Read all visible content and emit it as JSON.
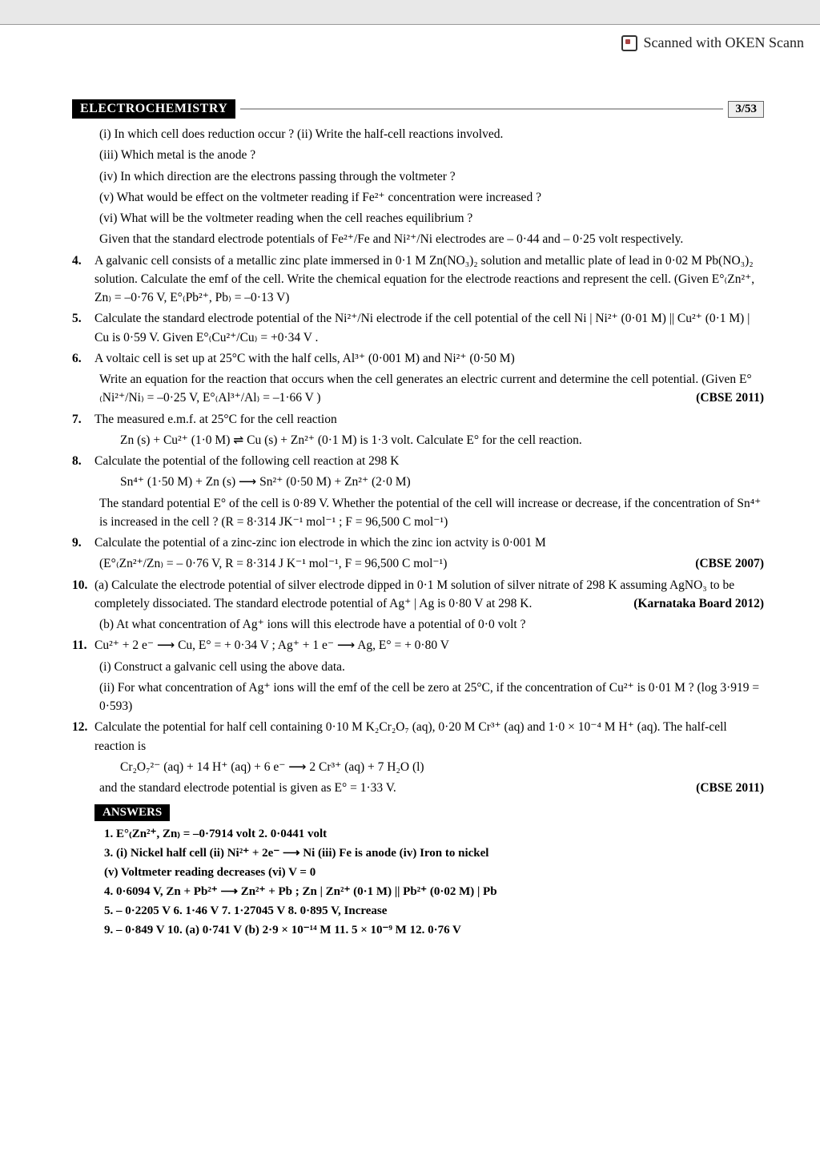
{
  "header": {
    "scan_credit": "Scanned with OKEN Scann"
  },
  "chapter": {
    "label": "ELECTROCHEMISTRY",
    "page_ref": "3/53"
  },
  "intro_subs": {
    "i": "(i) In which cell does reduction occur ?   (ii) Write the half-cell reactions involved.",
    "iii": "(iii) Which metal is the anode ?",
    "iv": "(iv) In which direction are the electrons passing through the voltmeter ?",
    "v": "(v) What would be effect on the voltmeter reading if Fe²⁺ concentration were increased ?",
    "vi": "(vi) What will be the voltmeter reading when the cell reaches equilibrium ?",
    "given": "Given that the standard electrode potentials of Fe²⁺/Fe and Ni²⁺/Ni electrodes are – 0·44 and – 0·25 volt respectively."
  },
  "q4": {
    "num": "4.",
    "text": "A galvanic cell consists of a metallic zinc plate immersed in 0·1 M Zn(NO₃)₂ solution and metallic plate of lead in 0·02 M Pb(NO₃)₂ solution. Calculate the emf of the cell. Write the chemical equation for the electrode reactions and represent the cell. (Given  E°₍Zn²⁺, Zn₎ = –0·76 V,  E°₍Pb²⁺, Pb₎ = –0·13 V)"
  },
  "q5": {
    "num": "5.",
    "text": "Calculate the standard electrode potential of the Ni²⁺/Ni electrode if the cell potential of the cell Ni | Ni²⁺ (0·01 M) || Cu²⁺ (0·1 M) | Cu is 0·59 V. Given E°₍Cu²⁺/Cu₎ = +0·34 V ."
  },
  "q6": {
    "num": "6.",
    "text": "A voltaic cell is set up at 25°C with the half cells,  Al³⁺ (0·001 M) and Ni²⁺ (0·50 M)",
    "text2": "Write an equation for the reaction that occurs when the cell generates an electric current and determine the cell potential.  (Given E°₍Ni²⁺/Ni₎ = –0·25 V,  E°₍Al³⁺/Al₎ = –1·66 V )",
    "ref": "(CBSE 2011)"
  },
  "q7": {
    "num": "7.",
    "text": "The measured e.m.f. at 25°C for the cell reaction",
    "eq": "Zn (s) + Cu²⁺ (1·0 M)  ⇌  Cu (s) + Zn²⁺ (0·1 M) is 1·3 volt. Calculate E° for the cell reaction."
  },
  "q8": {
    "num": "8.",
    "text": "Calculate the potential of the following cell reaction at 298 K",
    "eq": "Sn⁴⁺ (1·50 M) + Zn (s) ⟶ Sn²⁺ (0·50 M) + Zn²⁺ (2·0 M)",
    "text2": "The standard potential E° of the cell is 0·89 V. Whether the potential of the cell will increase or decrease, if the concentration of Sn⁴⁺ is increased in the cell ?  (R = 8·314 JK⁻¹ mol⁻¹ ; F = 96,500 C mol⁻¹)"
  },
  "q9": {
    "num": "9.",
    "text": "Calculate the potential of a zinc-zinc ion electrode in which the zinc ion actvity is 0·001 M",
    "eq": "(E°₍Zn²⁺/Zn₎ = – 0·76 V, R = 8·314 J K⁻¹ mol⁻¹, F = 96,500 C mol⁻¹)",
    "ref": "(CBSE 2007)"
  },
  "q10": {
    "num": "10.",
    "a": "(a) Calculate the electrode potential of silver electrode dipped in 0·1 M solution of silver nitrate of 298 K assuming AgNO₃ to be completely dissociated. The standard electrode potential of Ag⁺ | Ag is 0·80 V at 298 K.",
    "a_ref": "(Karnataka Board 2012)",
    "b": "(b) At what concentration of Ag⁺ ions will this electrode have a potential of 0·0 volt ?"
  },
  "q11": {
    "num": "11.",
    "text": "Cu²⁺ + 2 e⁻ ⟶ Cu, E° = + 0·34 V ;   Ag⁺ + 1 e⁻ ⟶ Ag, E° = + 0·80 V",
    "i": "(i) Construct a galvanic cell using the above data.",
    "ii": "(ii) For what concentration of Ag⁺ ions will the emf of the cell be zero at 25°C, if the concentration of Cu²⁺ is 0·01 M ? (log 3·919 = 0·593)"
  },
  "q12": {
    "num": "12.",
    "text": "Calculate the potential for half cell containing 0·10 M K₂Cr₂O₇ (aq), 0·20 M Cr³⁺ (aq) and 1·0 × 10⁻⁴ M H⁺ (aq). The half-cell reaction is",
    "eq": "Cr₂O₇²⁻ (aq) + 14 H⁺ (aq) + 6 e⁻ ⟶ 2 Cr³⁺ (aq) + 7 H₂O (l)",
    "text2": "and the standard electrode potential is given as E° = 1·33 V.",
    "ref": "(CBSE 2011)"
  },
  "answers": {
    "label": "ANSWERS",
    "r1": "1. E°₍Zn²⁺, Zn₎ = –0·7914 volt        2. 0·0441 volt",
    "r2": "3. (i) Nickel half cell (ii) Ni²⁺ + 2e⁻ ⟶ Ni (iii) Fe is anode (iv) Iron to nickel",
    "r3": "(v) Voltmeter reading decreases (vi) V = 0",
    "r4": "4. 0·6094 V, Zn + Pb²⁺ ⟶ Zn²⁺ + Pb ;  Zn | Zn²⁺ (0·1 M) || Pb²⁺ (0·02 M) | Pb",
    "r5": "5. – 0·2205 V      6. 1·46 V      7. 1·27045 V                  8. 0·895 V, Increase",
    "r6": "9. – 0·849 V     10. (a) 0·741 V (b) 2·9 × 10⁻¹⁴ M            11. 5 × 10⁻⁹ M         12. 0·76 V"
  }
}
